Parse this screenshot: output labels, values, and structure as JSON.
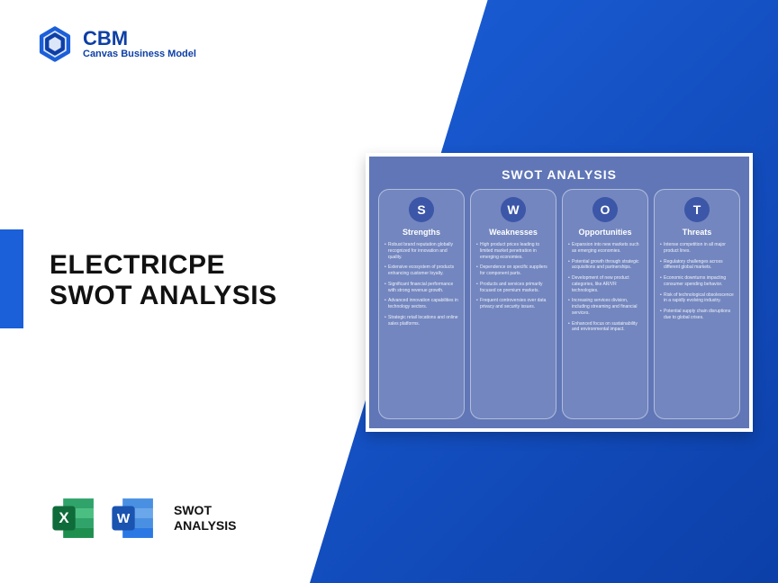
{
  "brand": {
    "abbr": "CBM",
    "full": "Canvas Business Model",
    "color": "#0d3fa6"
  },
  "headline": {
    "line1": "ELECTRICPE",
    "line2": "SWOT ANALYSIS"
  },
  "apps_label": {
    "line1": "SWOT",
    "line2": "ANALYSIS"
  },
  "accent_color": "#1b5fd9",
  "gradient_from": "#1b5fd9",
  "gradient_to": "#0c3fa8",
  "swot": {
    "title": "SWOT ANALYSIS",
    "card_bg": "#6076b7",
    "circle_bg": "#3c56a8",
    "columns": [
      {
        "letter": "S",
        "heading": "Strengths",
        "items": [
          "Robust brand reputation globally recognized for innovation and quality.",
          "Extensive ecosystem of products enhancing customer loyalty.",
          "Significant financial performance with strong revenue growth.",
          "Advanced innovation capabilities in technology sectors.",
          "Strategic retail locations and online sales platforms."
        ]
      },
      {
        "letter": "W",
        "heading": "Weaknesses",
        "items": [
          "High product prices leading to limited market penetration in emerging economies.",
          "Dependence on specific suppliers for component parts.",
          "Products and services primarily focused on premium markets.",
          "Frequent controversies over data privacy and security issues."
        ]
      },
      {
        "letter": "O",
        "heading": "Opportunities",
        "items": [
          "Expansion into new markets such as emerging economies.",
          "Potential growth through strategic acquisitions and partnerships.",
          "Development of new product categories, like AR/VR technologies.",
          "Increasing services division, including streaming and financial services.",
          "Enhanced focus on sustainability and environmental impact."
        ]
      },
      {
        "letter": "T",
        "heading": "Threats",
        "items": [
          "Intense competition in all major product lines.",
          "Regulatory challenges across different global markets.",
          "Economic downturns impacting consumer spending behavior.",
          "Risk of technological obsolescence in a rapidly evolving industry.",
          "Potential supply chain disruptions due to global crises."
        ]
      }
    ]
  },
  "icons": {
    "excel": {
      "bg": "#1e8f4e",
      "deep": "#0f6b39",
      "letter": "X"
    },
    "word": {
      "bg": "#2b78e4",
      "deep": "#1a53b0",
      "letter": "W"
    }
  }
}
